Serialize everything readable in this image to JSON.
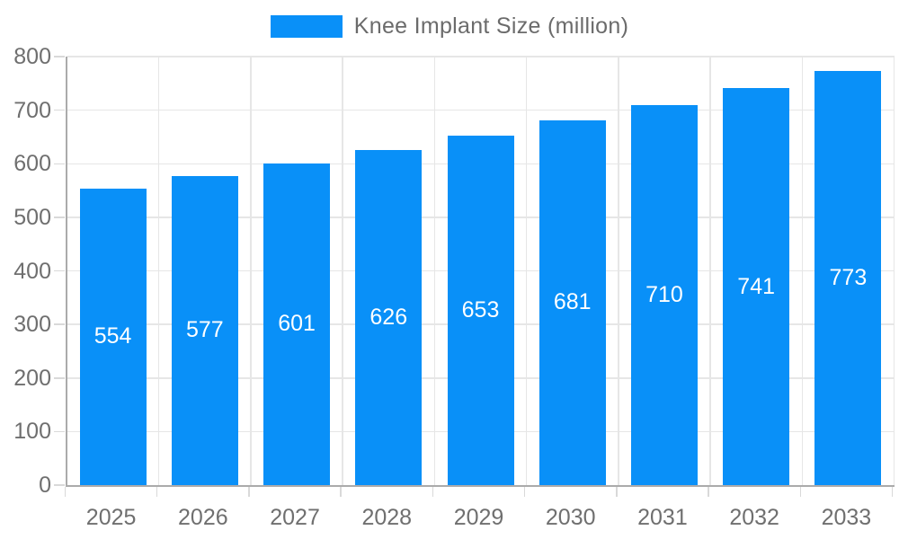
{
  "chart_data": {
    "type": "bar",
    "title": "",
    "legend": "Knee Implant Size (million)",
    "legend_position": "top",
    "categories": [
      "2025",
      "2026",
      "2027",
      "2028",
      "2029",
      "2030",
      "2031",
      "2032",
      "2033"
    ],
    "values": [
      554,
      577,
      601,
      626,
      653,
      681,
      710,
      741,
      773
    ],
    "xlabel": "",
    "ylabel": "",
    "ylim": [
      0,
      800
    ],
    "yticks": [
      0,
      100,
      200,
      300,
      400,
      500,
      600,
      700,
      800
    ],
    "grid": true,
    "bar_color": "#0990f8",
    "value_label_color": "#ffffff",
    "axis_text_color": "#6f6f6f"
  }
}
